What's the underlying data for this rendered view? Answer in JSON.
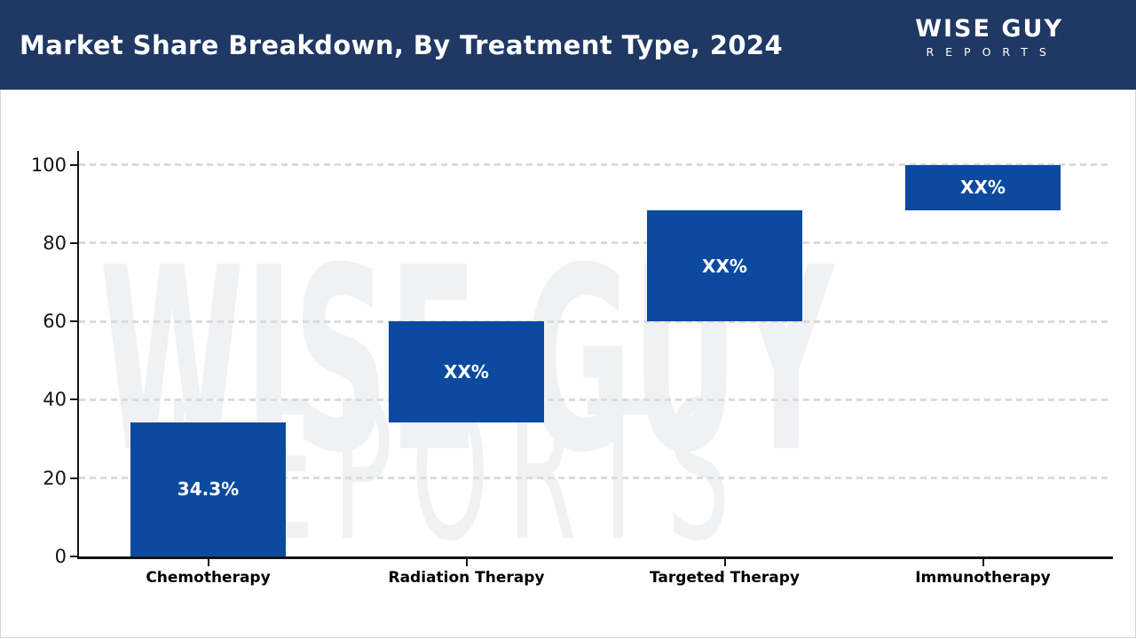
{
  "header": {
    "title": "Market Share Breakdown, By Treatment Type, 2024",
    "logo": {
      "wordmark": "WISE GUY",
      "subtitle": "REPORTS"
    }
  },
  "watermark": {
    "wordmark": "WISE GUY",
    "subtitle": "REPORTS"
  },
  "chart_data": {
    "type": "bar",
    "subtype": "waterfall",
    "title": "Market Share Breakdown, By Treatment Type, 2024",
    "categories": [
      "Chemotherapy",
      "Radiation Therapy",
      "Targeted Therapy",
      "Immunotherapy"
    ],
    "segments": [
      {
        "category": "Chemotherapy",
        "start": 0,
        "end": 34.3,
        "label": "34.3%"
      },
      {
        "category": "Radiation Therapy",
        "start": 34.3,
        "end": 60,
        "label": "XX%"
      },
      {
        "category": "Targeted Therapy",
        "start": 60,
        "end": 88.3,
        "label": "XX%"
      },
      {
        "category": "Immunotherapy",
        "start": 88.3,
        "end": 100,
        "label": "XX%"
      }
    ],
    "xlabel": "",
    "ylabel": "",
    "ylim": [
      0,
      100
    ],
    "yticks": [
      0,
      20,
      40,
      60,
      80,
      100
    ],
    "grid": "horizontal-dashed",
    "legend": "none",
    "bar_color": "#0C4AA0",
    "bar_label_color": "#FFFFFF",
    "masked_label": "XX%"
  },
  "colors": {
    "header_bg": "#1F3864",
    "bar": "#0C4AA0",
    "watermark": "#EFF1F3",
    "grid": "#DBDBDB",
    "axis": "#141414"
  }
}
